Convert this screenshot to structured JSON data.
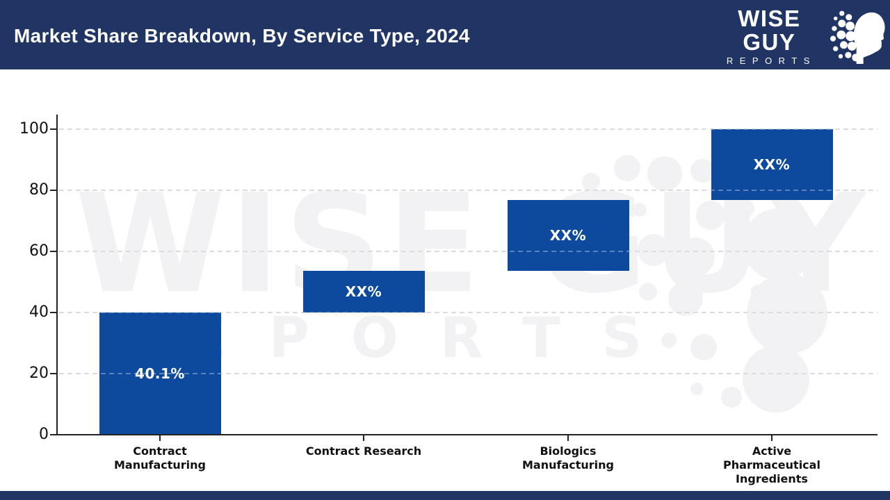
{
  "header": {
    "title": "Market Share Breakdown, By Service Type, 2024",
    "logo": {
      "line1": "WISE GUY",
      "line2": "REPORTS"
    }
  },
  "watermark": {
    "line1": "WISE GUY",
    "line2": "REPORTS"
  },
  "chart_data": {
    "type": "bar",
    "subtype": "waterfall-floating-bars",
    "title": "Market Share Breakdown, By Service Type, 2024",
    "categories": [
      "Contract Manufacturing",
      "Contract Research",
      "Biologics Manufacturing",
      "Active Pharmaceutical Ingredients"
    ],
    "category_lines": [
      [
        "Contract",
        "Manufacturing"
      ],
      [
        "Contract Research"
      ],
      [
        "Biologics",
        "Manufacturing"
      ],
      [
        "Active",
        "Pharmaceutical",
        "Ingredients"
      ]
    ],
    "bars": [
      {
        "label": "40.1%",
        "start": 0,
        "end": 40.1
      },
      {
        "label": "XX%",
        "start": 40.1,
        "end": 53.7
      },
      {
        "label": "XX%",
        "start": 53.7,
        "end": 76.9
      },
      {
        "label": "XX%",
        "start": 76.9,
        "end": 100
      }
    ],
    "y_ticks": [
      0,
      20,
      40,
      60,
      80,
      100
    ],
    "ylim": [
      0,
      104
    ],
    "grid": "horizontal-dashed",
    "legend": "none",
    "xlabel": "",
    "ylabel": ""
  },
  "colors": {
    "header_bg": "#213565",
    "footer_bg": "#213565",
    "bar": "#0d4a9d",
    "grid": "#cbcbcb",
    "axis": "#222222",
    "text": "#111111",
    "watermark": "#f2f2f4",
    "bar_label": "#ffffff"
  }
}
